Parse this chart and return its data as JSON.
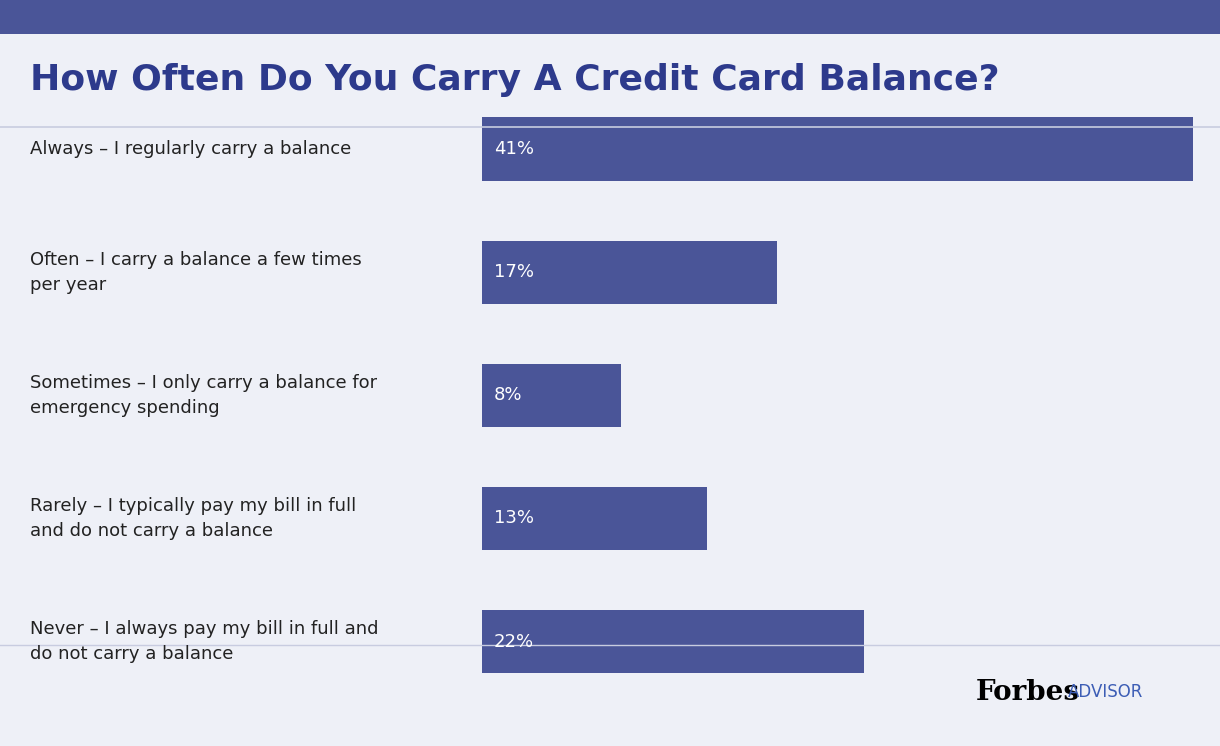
{
  "title": "How Often Do You Carry A Credit Card Balance?",
  "title_color": "#2d3a8c",
  "title_fontsize": 26,
  "background_color": "#eef0f7",
  "header_bar_color": "#4a5598",
  "bar_color": "#4a5598",
  "bar_text_color": "#ffffff",
  "categories": [
    "Always – I regularly carry a balance",
    "Often – I carry a balance a few times\nper year",
    "Sometimes – I only carry a balance for\nemergency spending",
    "Rarely – I typically pay my bill in full\nand do not carry a balance",
    "Never – I always pay my bill in full and\ndo not carry a balance"
  ],
  "values": [
    41,
    17,
    8,
    13,
    22
  ],
  "labels": [
    "41%",
    "17%",
    "8%",
    "13%",
    "22%"
  ],
  "max_val": 41,
  "label_fontsize": 13,
  "category_fontsize": 13,
  "forbes_black": "#000000",
  "forbes_blue": "#3c5db5"
}
